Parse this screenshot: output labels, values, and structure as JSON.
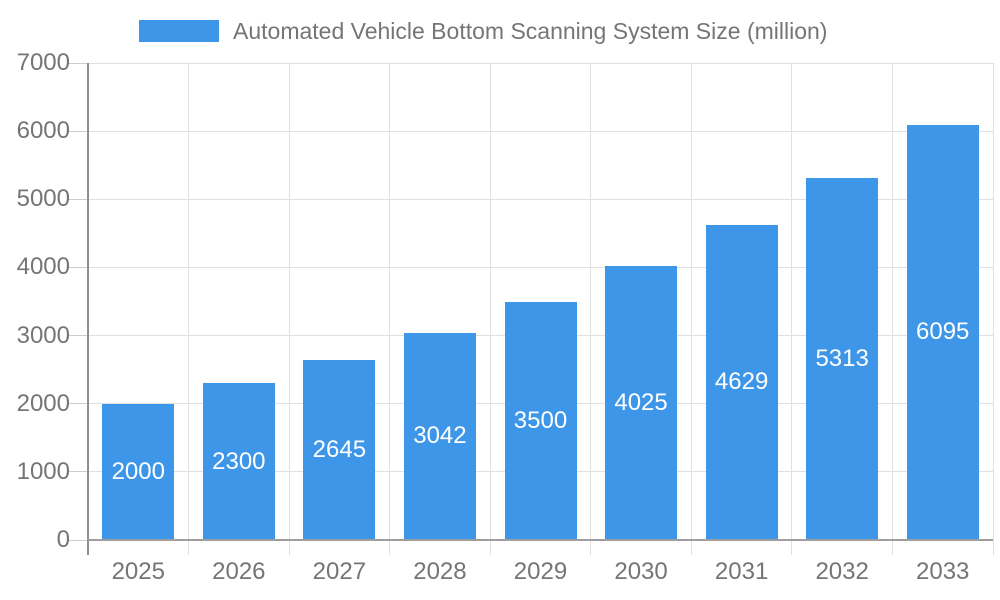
{
  "legend": {
    "label": "Automated Vehicle Bottom Scanning System Size (million)"
  },
  "chart_data": {
    "type": "bar",
    "title": "Automated Vehicle Bottom Scanning System Size (million)",
    "categories": [
      "2025",
      "2026",
      "2027",
      "2028",
      "2029",
      "2030",
      "2031",
      "2032",
      "2033"
    ],
    "series": [
      {
        "name": "Automated Vehicle Bottom Scanning System Size (million)",
        "values": [
          2000,
          2300,
          2645,
          3042,
          3500,
          4025,
          4629,
          5313,
          6095
        ]
      }
    ],
    "value_labels": [
      "2000",
      "2300",
      "2645",
      "3042",
      "3500",
      "4025",
      "4629",
      "5313",
      "6095"
    ],
    "xlabel": "",
    "ylabel": "",
    "ylim": [
      0,
      7000
    ],
    "yticks": [
      0,
      1000,
      2000,
      3000,
      4000,
      5000,
      6000,
      7000
    ],
    "grid": true,
    "legend_position": "top-left",
    "colors": {
      "bar": "#3D96E8",
      "value_label": "#ffffff",
      "axis_text": "#757575",
      "gridline": "#e0e0e0",
      "tick": "#cccccc",
      "y_axis_line": "#8f8f8f",
      "x_axis_line": "#9e9e9e"
    }
  }
}
